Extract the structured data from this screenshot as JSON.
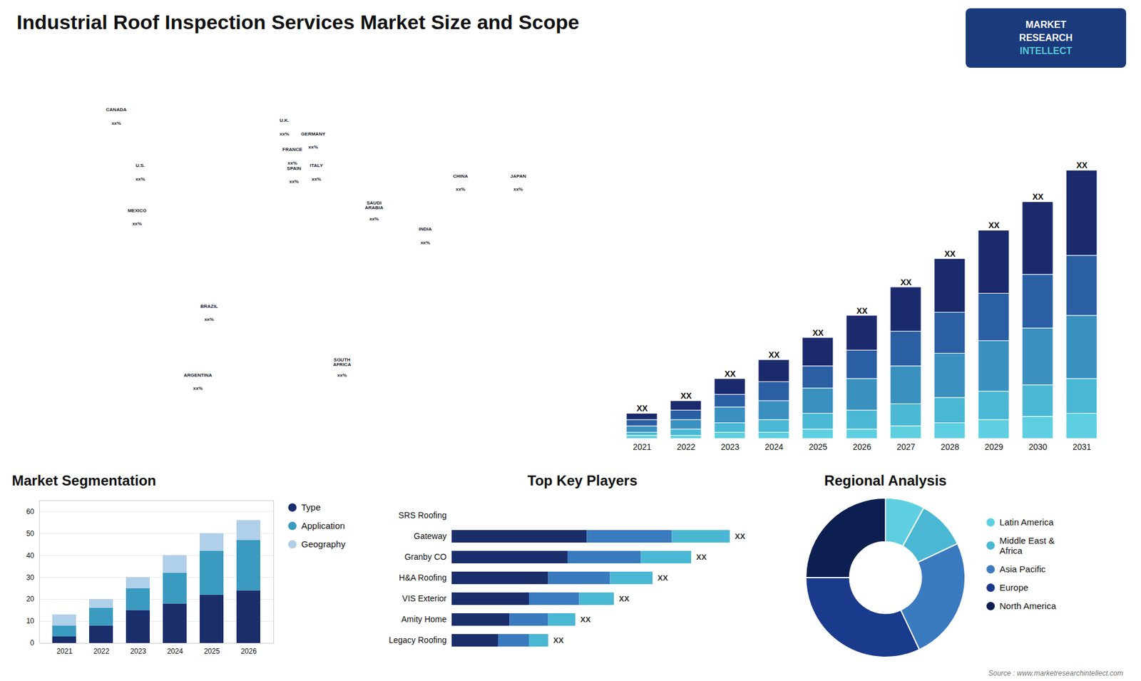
{
  "chart_data": [
    {
      "type": "map",
      "title": "Industrial Roof Inspection Services Market Size and Scope",
      "xlim": [
        -180,
        180
      ],
      "ylim": [
        -65,
        85
      ],
      "tick_labels": false,
      "annotations": [
        {
          "text": "CANADA",
          "x": -115,
          "y": 65
        },
        {
          "text": "xx%",
          "x": -115,
          "y": 60
        },
        {
          "text": "U.S.",
          "x": -100,
          "y": 44
        },
        {
          "text": "xx%",
          "x": -100,
          "y": 39
        },
        {
          "text": "MEXICO",
          "x": -102,
          "y": 27
        },
        {
          "text": "xx%",
          "x": -102,
          "y": 22
        },
        {
          "text": "BRAZIL",
          "x": -57,
          "y": -9
        },
        {
          "text": "xx%",
          "x": -57,
          "y": -14
        },
        {
          "text": "ARGENTINA",
          "x": -64,
          "y": -35
        },
        {
          "text": "xx%",
          "x": -64,
          "y": -40
        },
        {
          "text": "U.K.",
          "x": -10,
          "y": 61
        },
        {
          "text": "xx%",
          "x": -10,
          "y": 56
        },
        {
          "text": "FRANCE",
          "x": -5,
          "y": 50
        },
        {
          "text": "xx%",
          "x": -5,
          "y": 45
        },
        {
          "text": "SPAIN",
          "x": -4,
          "y": 43
        },
        {
          "text": "xx%",
          "x": -4,
          "y": 38
        },
        {
          "text": "GERMANY",
          "x": 8,
          "y": 56
        },
        {
          "text": "xx%",
          "x": 8,
          "y": 51
        },
        {
          "text": "ITALY",
          "x": 10,
          "y": 44
        },
        {
          "text": "xx%",
          "x": 10,
          "y": 39
        },
        {
          "text": "SAUDI\nARABIA",
          "x": 46,
          "y": 29
        },
        {
          "text": "xx%",
          "x": 46,
          "y": 24
        },
        {
          "text": "SOUTH\nAFRICA",
          "x": 26,
          "y": -30
        },
        {
          "text": "xx%",
          "x": 26,
          "y": -35
        },
        {
          "text": "CHINA",
          "x": 100,
          "y": 40
        },
        {
          "text": "xx%",
          "x": 100,
          "y": 35
        },
        {
          "text": "INDIA",
          "x": 78,
          "y": 20
        },
        {
          "text": "xx%",
          "x": 78,
          "y": 15
        },
        {
          "text": "JAPAN",
          "x": 136,
          "y": 40
        },
        {
          "text": "xx%",
          "x": 136,
          "y": 35
        }
      ]
    },
    {
      "type": "bar",
      "stacked": true,
      "categories": [
        "2021",
        "2022",
        "2023",
        "2024",
        "2025",
        "2026",
        "2027",
        "2028",
        "2029",
        "2030",
        "2031"
      ],
      "series": [
        {
          "name": "Latin America",
          "color": "#5ecfe0",
          "values": [
            1,
            1,
            2,
            2,
            3,
            3,
            4,
            5,
            6,
            7,
            8
          ]
        },
        {
          "name": "Middle East & Africa",
          "color": "#4ab8d4",
          "values": [
            1,
            2,
            3,
            4,
            5,
            6,
            7,
            8,
            9,
            10,
            11
          ]
        },
        {
          "name": "Asia Pacific",
          "color": "#3a90bf",
          "values": [
            2,
            3,
            5,
            6,
            8,
            10,
            12,
            14,
            16,
            18,
            20
          ]
        },
        {
          "name": "Europe",
          "color": "#2a5fa3",
          "values": [
            2,
            3,
            4,
            6,
            7,
            9,
            11,
            13,
            15,
            17,
            19
          ]
        },
        {
          "name": "North America",
          "color": "#1a2a6c",
          "values": [
            2,
            3,
            5,
            7,
            9,
            11,
            14,
            17,
            20,
            23,
            27
          ]
        }
      ],
      "ylim": [
        0,
        105
      ],
      "tick_labels": "x",
      "grid": false,
      "annotations": [
        {
          "text": "XX",
          "x": "2021"
        },
        {
          "text": "XX",
          "x": "2022"
        },
        {
          "text": "XX",
          "x": "2023"
        },
        {
          "text": "XX",
          "x": "2024"
        },
        {
          "text": "XX",
          "x": "2025"
        },
        {
          "text": "XX",
          "x": "2026"
        },
        {
          "text": "XX",
          "x": "2027"
        },
        {
          "text": "XX",
          "x": "2028"
        },
        {
          "text": "XX",
          "x": "2029"
        },
        {
          "text": "XX",
          "x": "2030"
        },
        {
          "text": "XX",
          "x": "2031"
        },
        {
          "text": "MARKET"
        },
        {
          "text": "RESEARCH"
        },
        {
          "text": "INTELLECT"
        }
      ]
    },
    {
      "type": "bar",
      "stacked": true,
      "title": "Market Segmentation",
      "categories": [
        "2021",
        "2022",
        "2023",
        "2024",
        "2025",
        "2026"
      ],
      "series": [
        {
          "name": "Type",
          "color": "#1a2e6c",
          "values": [
            3,
            8,
            15,
            18,
            22,
            24
          ]
        },
        {
          "name": "Application",
          "color": "#3a9abf",
          "values": [
            5,
            8,
            10,
            14,
            20,
            23
          ]
        },
        {
          "name": "Geography",
          "color": "#b0cfe8",
          "values": [
            5,
            4,
            5,
            8,
            8,
            9
          ]
        }
      ],
      "ylim": [
        0,
        65
      ],
      "yticks": [
        0,
        10,
        20,
        30,
        40,
        50,
        60
      ],
      "grid": true,
      "legend": "right"
    },
    {
      "type": "bar",
      "stacked": true,
      "orientation": "horizontal",
      "title": "Top Key Players",
      "categories": [
        "SRS Roofing",
        "Gateway",
        "Granby CO",
        "H&A Roofing",
        "VIS Exterior",
        "Amity Home",
        "Legacy Roofing"
      ],
      "series": [
        {
          "color": "#1a2e6c",
          "values": [
            0,
            35,
            30,
            25,
            20,
            15,
            12
          ]
        },
        {
          "color": "#3a7abf",
          "values": [
            0,
            22,
            19,
            16,
            13,
            10,
            8
          ]
        },
        {
          "color": "#4ab8d4",
          "values": [
            0,
            15,
            13,
            11,
            9,
            7,
            5
          ]
        }
      ],
      "xlim": [
        0,
        80
      ],
      "tick_labels": "y",
      "grid": false,
      "annotations": [
        {
          "text": "XX",
          "y": "Gateway"
        },
        {
          "text": "XX",
          "y": "Granby CO"
        },
        {
          "text": "XX",
          "y": "H&A Roofing"
        },
        {
          "text": "XX",
          "y": "VIS Exterior"
        },
        {
          "text": "XX",
          "y": "Amity Home"
        },
        {
          "text": "XX",
          "y": "Legacy Roofing"
        }
      ]
    },
    {
      "type": "pie",
      "title": "Regional Analysis",
      "categories": [
        "Latin America",
        "Middle East &\nAfrica",
        "Asia Pacific",
        "Europe",
        "North America"
      ],
      "values": [
        8,
        10,
        25,
        32,
        25
      ],
      "colors": [
        "#5ecfe0",
        "#4ab8d4",
        "#3a7abf",
        "#1a3a8c",
        "#0d1f50"
      ],
      "legend": "right",
      "annotations": [
        {
          "text": "Source : www.marketresearchintellect.com"
        }
      ]
    }
  ]
}
